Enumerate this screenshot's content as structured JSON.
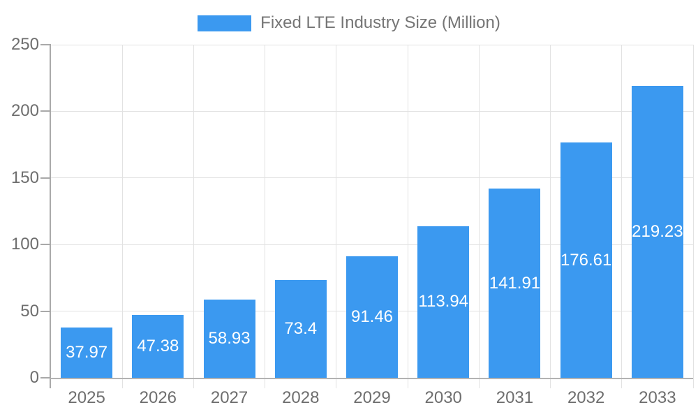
{
  "chart_data": {
    "type": "bar",
    "series_name": "Fixed LTE Industry Size (Million)",
    "categories": [
      "2025",
      "2026",
      "2027",
      "2028",
      "2029",
      "2030",
      "2031",
      "2032",
      "2033"
    ],
    "values": [
      37.97,
      47.38,
      58.93,
      73.4,
      91.46,
      113.94,
      141.91,
      176.61,
      219.23
    ],
    "value_labels": [
      "37.97",
      "47.38",
      "58.93",
      "73.4",
      "91.46",
      "113.94",
      "141.91",
      "176.61",
      "219.23"
    ],
    "title": "",
    "xlabel": "",
    "ylabel": "",
    "ylim": [
      0,
      250
    ],
    "yticks": [
      0,
      50,
      100,
      150,
      200,
      250
    ],
    "grid": true,
    "legend_position": "top-center"
  },
  "colors": {
    "bar": "#3b99f0",
    "axis_text": "#6e6e6e",
    "legend_text": "#757575",
    "grid_line": "#e2e2e2",
    "axis_line": "#a9a9a9",
    "x_axis_line": "#b3b3b3",
    "value_label": "#ffffff",
    "background": "#ffffff"
  }
}
